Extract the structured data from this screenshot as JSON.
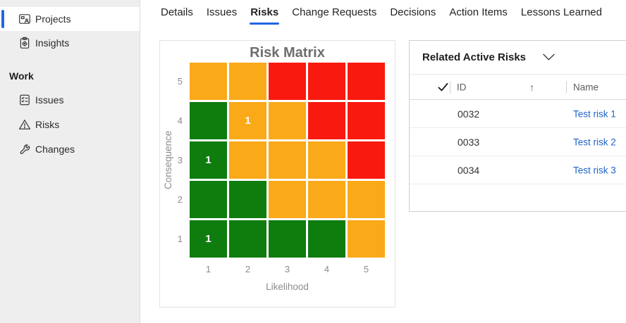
{
  "colors": {
    "accent": "#2266E3",
    "link": "#2264C9",
    "green": "#0E7D0E",
    "orange": "#FAA919",
    "red": "#F9190F"
  },
  "sidebar": {
    "items": [
      {
        "label": "Projects",
        "selected": true
      },
      {
        "label": "Insights",
        "selected": false
      }
    ],
    "section_label": "Work",
    "work_items": [
      {
        "label": "Issues"
      },
      {
        "label": "Risks"
      },
      {
        "label": "Changes"
      }
    ]
  },
  "tabs": [
    {
      "label": "Details",
      "active": false
    },
    {
      "label": "Issues",
      "active": false
    },
    {
      "label": "Risks",
      "active": true
    },
    {
      "label": "Change Requests",
      "active": false
    },
    {
      "label": "Decisions",
      "active": false
    },
    {
      "label": "Action Items",
      "active": false
    },
    {
      "label": "Lessons Learned",
      "active": false
    }
  ],
  "chart_data": {
    "type": "heatmap",
    "title": "Risk Matrix",
    "xlabel": "Likelihood",
    "ylabel": "Consequence",
    "x_ticks": [
      "1",
      "2",
      "3",
      "4",
      "5"
    ],
    "y_ticks": [
      "5",
      "4",
      "3",
      "2",
      "1"
    ],
    "cells": [
      [
        "orange",
        "orange",
        "red",
        "red",
        "red"
      ],
      [
        "green",
        "orange",
        "orange",
        "red",
        "red"
      ],
      [
        "green",
        "orange",
        "orange",
        "orange",
        "red"
      ],
      [
        "green",
        "green",
        "orange",
        "orange",
        "orange"
      ],
      [
        "green",
        "green",
        "green",
        "green",
        "orange"
      ]
    ],
    "labels": [
      {
        "x": 2,
        "y": 4,
        "value": "1"
      },
      {
        "x": 1,
        "y": 3,
        "value": "1"
      },
      {
        "x": 1,
        "y": 1,
        "value": "1"
      }
    ]
  },
  "risk_panel": {
    "title": "Related Active Risks",
    "columns": {
      "id": "ID",
      "name": "Name"
    },
    "sort_icon": "↑",
    "rows": [
      {
        "id": "0032",
        "name": "Test risk 1"
      },
      {
        "id": "0033",
        "name": "Test risk 2"
      },
      {
        "id": "0034",
        "name": "Test risk 3"
      }
    ]
  }
}
